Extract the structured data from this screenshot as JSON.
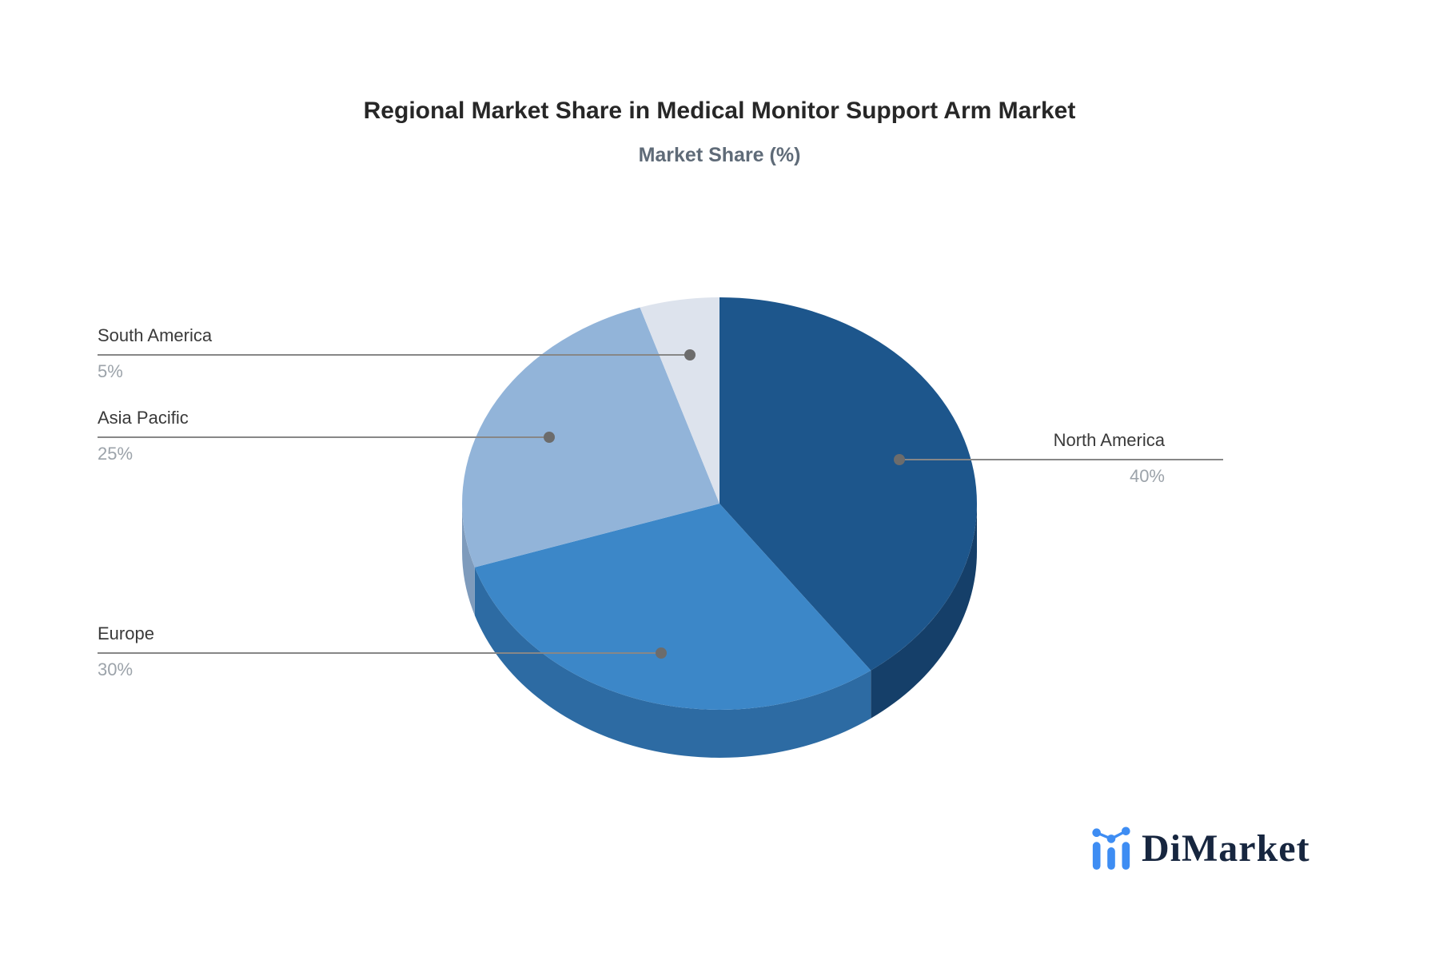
{
  "page": {
    "background": "#ffffff"
  },
  "header": {
    "title": "Regional Market Share in Medical Monitor Support Arm Market",
    "subtitle": "Market Share (%)"
  },
  "chart_data": {
    "type": "pie",
    "title": "Regional Market Share in Medical Monitor Support Arm Market",
    "subtitle": "Market Share (%)",
    "unit": "%",
    "effect": "3d",
    "start_angle_deg": 0,
    "direction": "clockwise",
    "legend_position": "callout-labels",
    "slices": [
      {
        "label": "North America",
        "value": 40,
        "pct": "40%",
        "color": "#1d568c",
        "side_color": "#153f69"
      },
      {
        "label": "Europe",
        "value": 30,
        "pct": "30%",
        "color": "#3c87c8",
        "side_color": "#2d6ba3"
      },
      {
        "label": "Asia Pacific",
        "value": 25,
        "pct": "25%",
        "color": "#92b4d9",
        "side_color": "#7e9bbc"
      },
      {
        "label": "South America",
        "value": 5,
        "pct": "5%",
        "color": "#dde3ed",
        "side_color": "#c5cedd"
      }
    ]
  },
  "callout_style": {
    "line_color": "#878787",
    "dot_color": "#6c6c6c",
    "label_color": "#3a3a3a",
    "value_color": "#9ca3aa"
  },
  "logo": {
    "text": "DiMarket",
    "icon": "bar-chart-icon",
    "icon_color": "#3e8df3",
    "text_color": "#17263f"
  }
}
